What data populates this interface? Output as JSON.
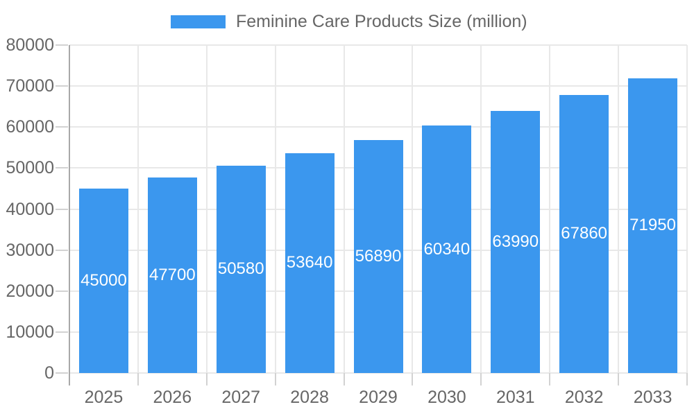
{
  "chart_data": {
    "type": "bar",
    "title": "Feminine Care Products Size (million)",
    "xlabel": "",
    "ylabel": "",
    "categories": [
      "2025",
      "2026",
      "2027",
      "2028",
      "2029",
      "2030",
      "2031",
      "2032",
      "2033"
    ],
    "values": [
      45000,
      47700,
      50580,
      53640,
      56890,
      60340,
      63990,
      67860,
      71950
    ],
    "value_labels": [
      "45000",
      "47700",
      "50580",
      "53640",
      "56890",
      "60340",
      "63990",
      "67860",
      "71950"
    ],
    "y_ticks": [
      "0",
      "10000",
      "20000",
      "30000",
      "40000",
      "50000",
      "60000",
      "70000",
      "80000"
    ],
    "ylim": [
      0,
      80000
    ],
    "grid": "on",
    "legend_position": "top",
    "colors": {
      "bar": "#3B97EE",
      "grid_line": "#E8E8E8",
      "axis_line": "#A8A8A8",
      "tick_line": "#D2D2D2",
      "axis_text": "#666666",
      "legend_text": "#666666",
      "value_label": "#FFFFFF"
    }
  }
}
